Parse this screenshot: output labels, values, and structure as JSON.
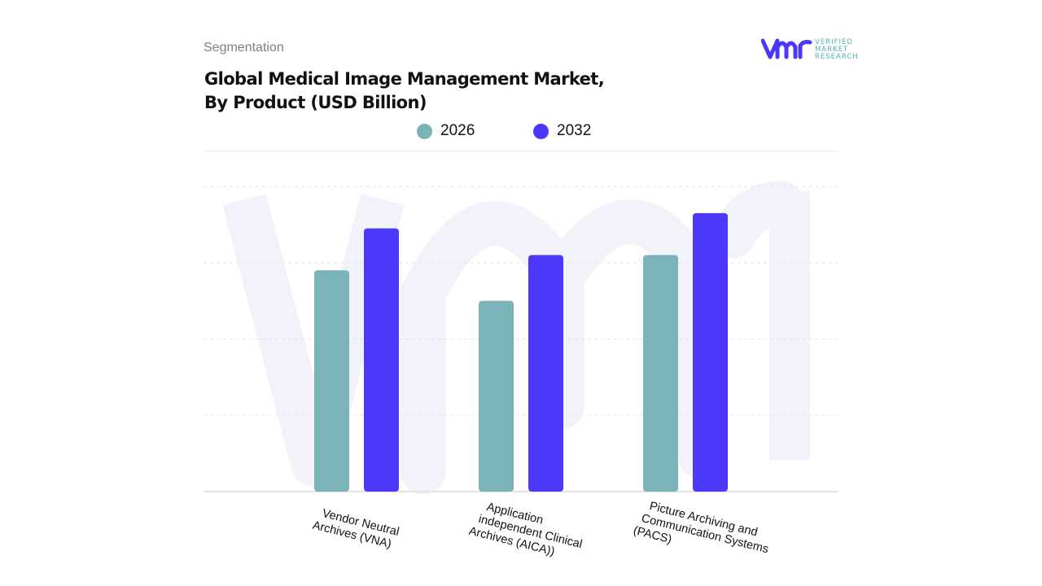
{
  "header": {
    "section": "Segmentation",
    "title_line1": "Global Medical Image Management Market,",
    "title_line2": "By Product (USD Billion)"
  },
  "logo": {
    "text_lines": [
      "VERIFIED",
      "MARKET",
      "RESEARCH"
    ],
    "mark": "vmr"
  },
  "colors": {
    "series_2026": "#7ab4b8",
    "series_2032": "#4b38fb",
    "grid": "#e6e6ee",
    "watermark": "#f1f2fa"
  },
  "chart_data": {
    "type": "bar",
    "title": "Global Medical Image Management Market, By Product (USD Billion)",
    "categories": [
      "Vendor Neutral Archives (VNA)",
      "Application independent Clinical Archives (AICA))",
      "Picture Archiving and Communication Systems (PACS)"
    ],
    "category_label_lines": [
      [
        "Vendor Neutral",
        "Archives (VNA)"
      ],
      [
        "Application",
        "independent Clinical",
        "Archives (AICA))"
      ],
      [
        "Picture Archiving and",
        "Communication Systems",
        "(PACS)"
      ]
    ],
    "series": [
      {
        "name": "2026",
        "values": [
          2.9,
          2.5,
          3.1
        ]
      },
      {
        "name": "2032",
        "values": [
          3.45,
          3.1,
          3.65
        ]
      }
    ],
    "ylim": [
      0,
      4
    ],
    "grid": true,
    "y_tick_labels_shown": false,
    "legend_position": "top-center",
    "xlabel": "",
    "ylabel": ""
  }
}
